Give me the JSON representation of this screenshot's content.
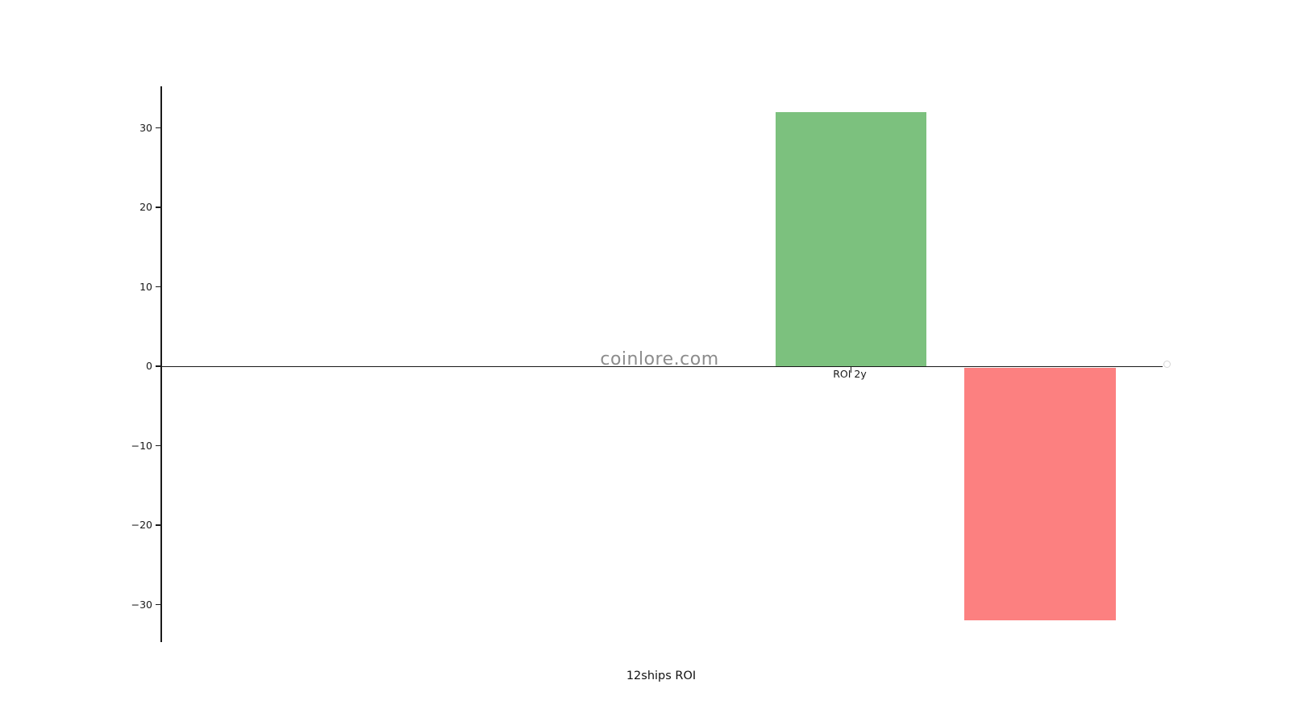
{
  "page": {
    "background": "#ffffff"
  },
  "chart_data": {
    "type": "bar",
    "title": "",
    "xlabel": "12ships ROI",
    "ylabel": "",
    "watermark": "coinlore.com",
    "categories": [
      "ROI 2y",
      ""
    ],
    "values": [
      32,
      -32
    ],
    "bar_colors": [
      "#7cc17e",
      "#fc8080"
    ],
    "positive_color": "#7cc17e",
    "negative_color": "#fc8080",
    "ytick_labels": [
      "30",
      "20",
      "10",
      "0",
      "−10",
      "−20",
      "−30"
    ],
    "ytick_values": [
      30,
      20,
      10,
      0,
      -10,
      -20,
      -30
    ],
    "ylim": [
      -34.8,
      35.2
    ],
    "grid": false,
    "legend_position": "none",
    "axis_color": "#1a1a1a",
    "watermark_color": "#8c8c8c"
  }
}
